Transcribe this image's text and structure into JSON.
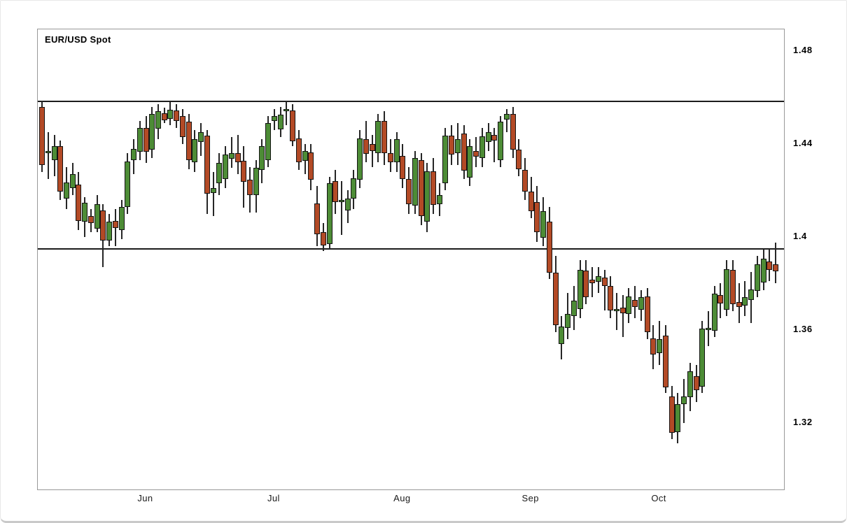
{
  "page": {
    "title": "EUR/USD Spot"
  },
  "chart_data": {
    "type": "candlestick",
    "title": "EUR/USD Spot",
    "instrument": "EUR/USD Spot",
    "x_axis": {
      "labels": [
        "Jun",
        "Jul",
        "Aug",
        "Sep",
        "Oct"
      ],
      "label_indices": [
        17,
        38,
        59,
        80,
        101
      ],
      "grid": false
    },
    "y_axis": {
      "position": "right",
      "min": 1.2908,
      "max": 1.4893,
      "ticks": [
        1.48,
        1.44,
        1.4,
        1.36,
        1.32
      ],
      "tick_labels": [
        "1.48",
        "1.44",
        "1.4",
        "1.36",
        "1.32"
      ],
      "grid": false
    },
    "horizontal_lines": [
      {
        "name": "resistance-line",
        "value": 1.4583
      },
      {
        "name": "support-line",
        "value": 1.3949
      }
    ],
    "colors": {
      "up_candle": "#4d8c36",
      "down_candle": "#b34a26",
      "wick": "#262626",
      "candle_border": "#141414",
      "line": "#1c1c1c",
      "plot_border": "#989898"
    },
    "candles_format": [
      "open",
      "high",
      "low",
      "close"
    ],
    "candles": [
      [
        1.456,
        1.4585,
        1.428,
        1.431
      ],
      [
        1.436,
        1.445,
        1.425,
        1.437
      ],
      [
        1.433,
        1.444,
        1.426,
        1.439
      ],
      [
        1.439,
        1.4415,
        1.416,
        1.4195
      ],
      [
        1.4165,
        1.43,
        1.412,
        1.4235
      ],
      [
        1.421,
        1.432,
        1.418,
        1.427
      ],
      [
        1.4225,
        1.428,
        1.403,
        1.407
      ],
      [
        1.4065,
        1.417,
        1.4,
        1.4148
      ],
      [
        1.409,
        1.412,
        1.402,
        1.406
      ],
      [
        1.4035,
        1.418,
        1.402,
        1.4142
      ],
      [
        1.4115,
        1.414,
        1.387,
        1.3985
      ],
      [
        1.3985,
        1.41,
        1.396,
        1.4065
      ],
      [
        1.407,
        1.412,
        1.396,
        1.404
      ],
      [
        1.403,
        1.416,
        1.399,
        1.413
      ],
      [
        1.413,
        1.436,
        1.41,
        1.4325
      ],
      [
        1.433,
        1.442,
        1.427,
        1.438
      ],
      [
        1.4365,
        1.45,
        1.433,
        1.447
      ],
      [
        1.447,
        1.452,
        1.432,
        1.4365
      ],
      [
        1.4375,
        1.456,
        1.434,
        1.453
      ],
      [
        1.4465,
        1.457,
        1.442,
        1.454
      ],
      [
        1.4532,
        1.4556,
        1.449,
        1.4502
      ],
      [
        1.4508,
        1.458,
        1.448,
        1.4548
      ],
      [
        1.4545,
        1.457,
        1.447,
        1.45
      ],
      [
        1.452,
        1.455,
        1.44,
        1.443
      ],
      [
        1.4495,
        1.453,
        1.429,
        1.433
      ],
      [
        1.432,
        1.446,
        1.428,
        1.442
      ],
      [
        1.441,
        1.449,
        1.435,
        1.445
      ],
      [
        1.4435,
        1.446,
        1.41,
        1.4185
      ],
      [
        1.419,
        1.428,
        1.409,
        1.421
      ],
      [
        1.423,
        1.436,
        1.418,
        1.432
      ],
      [
        1.425,
        1.439,
        1.421,
        1.4355
      ],
      [
        1.4338,
        1.443,
        1.4297,
        1.4362
      ],
      [
        1.436,
        1.444,
        1.427,
        1.4322
      ],
      [
        1.4328,
        1.439,
        1.4125,
        1.4236
      ],
      [
        1.4246,
        1.43,
        1.4105,
        1.4181
      ],
      [
        1.4181,
        1.433,
        1.4105,
        1.4297
      ],
      [
        1.4287,
        1.442,
        1.423,
        1.439
      ],
      [
        1.4331,
        1.452,
        1.43,
        1.449
      ],
      [
        1.45,
        1.455,
        1.446,
        1.452
      ],
      [
        1.4463,
        1.456,
        1.443,
        1.4527
      ],
      [
        1.454,
        1.4583,
        1.448,
        1.455
      ],
      [
        1.4545,
        1.457,
        1.439,
        1.4413
      ],
      [
        1.4425,
        1.446,
        1.429,
        1.4322
      ],
      [
        1.4328,
        1.44,
        1.427,
        1.4369
      ],
      [
        1.4363,
        1.44,
        1.42,
        1.4246
      ],
      [
        1.4143,
        1.422,
        1.396,
        1.4012
      ],
      [
        1.4022,
        1.406,
        1.394,
        1.3962
      ],
      [
        1.397,
        1.426,
        1.395,
        1.423
      ],
      [
        1.424,
        1.429,
        1.41,
        1.415
      ],
      [
        1.415,
        1.424,
        1.401,
        1.416
      ],
      [
        1.4115,
        1.42,
        1.406,
        1.4165
      ],
      [
        1.4165,
        1.429,
        1.412,
        1.4253
      ],
      [
        1.4245,
        1.446,
        1.421,
        1.4425
      ],
      [
        1.442,
        1.45,
        1.432,
        1.4359
      ],
      [
        1.44,
        1.444,
        1.43,
        1.437
      ],
      [
        1.436,
        1.453,
        1.432,
        1.45
      ],
      [
        1.45,
        1.454,
        1.431,
        1.436
      ],
      [
        1.436,
        1.442,
        1.428,
        1.4322
      ],
      [
        1.4322,
        1.445,
        1.428,
        1.442
      ],
      [
        1.435,
        1.44,
        1.421,
        1.4249
      ],
      [
        1.4251,
        1.43,
        1.41,
        1.414
      ],
      [
        1.4136,
        1.437,
        1.41,
        1.4339
      ],
      [
        1.433,
        1.436,
        1.405,
        1.409
      ],
      [
        1.4066,
        1.432,
        1.402,
        1.4283
      ],
      [
        1.4283,
        1.434,
        1.41,
        1.4139
      ],
      [
        1.414,
        1.423,
        1.409,
        1.418
      ],
      [
        1.423,
        1.447,
        1.42,
        1.4435
      ],
      [
        1.4435,
        1.448,
        1.431,
        1.4355
      ],
      [
        1.436,
        1.449,
        1.431,
        1.442
      ],
      [
        1.4445,
        1.448,
        1.425,
        1.4287
      ],
      [
        1.4256,
        1.442,
        1.422,
        1.4391
      ],
      [
        1.437,
        1.443,
        1.43,
        1.4345
      ],
      [
        1.434,
        1.447,
        1.43,
        1.4432
      ],
      [
        1.441,
        1.449,
        1.437,
        1.445
      ],
      [
        1.4438,
        1.447,
        1.4322,
        1.4416
      ],
      [
        1.433,
        1.452,
        1.43,
        1.4496
      ],
      [
        1.4505,
        1.455,
        1.445,
        1.453
      ],
      [
        1.453,
        1.456,
        1.434,
        1.4375
      ],
      [
        1.4375,
        1.442,
        1.426,
        1.429
      ],
      [
        1.429,
        1.434,
        1.416,
        1.4196
      ],
      [
        1.4196,
        1.426,
        1.408,
        1.411
      ],
      [
        1.415,
        1.422,
        1.398,
        1.402
      ],
      [
        1.3997,
        1.417,
        1.396,
        1.4111
      ],
      [
        1.4066,
        1.413,
        1.382,
        1.3848
      ],
      [
        1.3848,
        1.392,
        1.359,
        1.362
      ],
      [
        1.354,
        1.366,
        1.3475,
        1.3615
      ],
      [
        1.3609,
        1.376,
        1.356,
        1.3669
      ],
      [
        1.366,
        1.379,
        1.36,
        1.3726
      ],
      [
        1.369,
        1.39,
        1.365,
        1.386
      ],
      [
        1.3855,
        1.39,
        1.371,
        1.3741
      ],
      [
        1.3817,
        1.387,
        1.374,
        1.3802
      ],
      [
        1.3807,
        1.387,
        1.376,
        1.3832
      ],
      [
        1.3825,
        1.386,
        1.3685,
        1.379
      ],
      [
        1.3788,
        1.383,
        1.365,
        1.3684
      ],
      [
        1.368,
        1.376,
        1.36,
        1.369
      ],
      [
        1.3695,
        1.375,
        1.357,
        1.3672
      ],
      [
        1.367,
        1.378,
        1.363,
        1.3744
      ],
      [
        1.373,
        1.379,
        1.365,
        1.37
      ],
      [
        1.3687,
        1.377,
        1.364,
        1.3741
      ],
      [
        1.3744,
        1.378,
        1.356,
        1.3591
      ],
      [
        1.3564,
        1.362,
        1.343,
        1.3495
      ],
      [
        1.35,
        1.364,
        1.345,
        1.356
      ],
      [
        1.3576,
        1.362,
        1.333,
        1.3354
      ],
      [
        1.3315,
        1.336,
        1.313,
        1.3159
      ],
      [
        1.316,
        1.333,
        1.3113,
        1.328
      ],
      [
        1.328,
        1.339,
        1.32,
        1.3315
      ],
      [
        1.331,
        1.346,
        1.325,
        1.3421
      ],
      [
        1.34,
        1.345,
        1.329,
        1.334
      ],
      [
        1.3355,
        1.364,
        1.333,
        1.3606
      ],
      [
        1.36,
        1.368,
        1.353,
        1.361
      ],
      [
        1.3598,
        1.379,
        1.357,
        1.3756
      ],
      [
        1.375,
        1.38,
        1.365,
        1.3714
      ],
      [
        1.3688,
        1.39,
        1.366,
        1.3862
      ],
      [
        1.3859,
        1.39,
        1.368,
        1.371
      ],
      [
        1.3721,
        1.38,
        1.363,
        1.37
      ],
      [
        1.3705,
        1.381,
        1.366,
        1.374
      ],
      [
        1.3728,
        1.385,
        1.363,
        1.3773
      ],
      [
        1.3769,
        1.392,
        1.374,
        1.3884
      ],
      [
        1.3805,
        1.3946,
        1.377,
        1.3907
      ],
      [
        1.3895,
        1.395,
        1.381,
        1.3859
      ],
      [
        1.3884,
        1.3977,
        1.38,
        1.3852
      ]
    ]
  }
}
